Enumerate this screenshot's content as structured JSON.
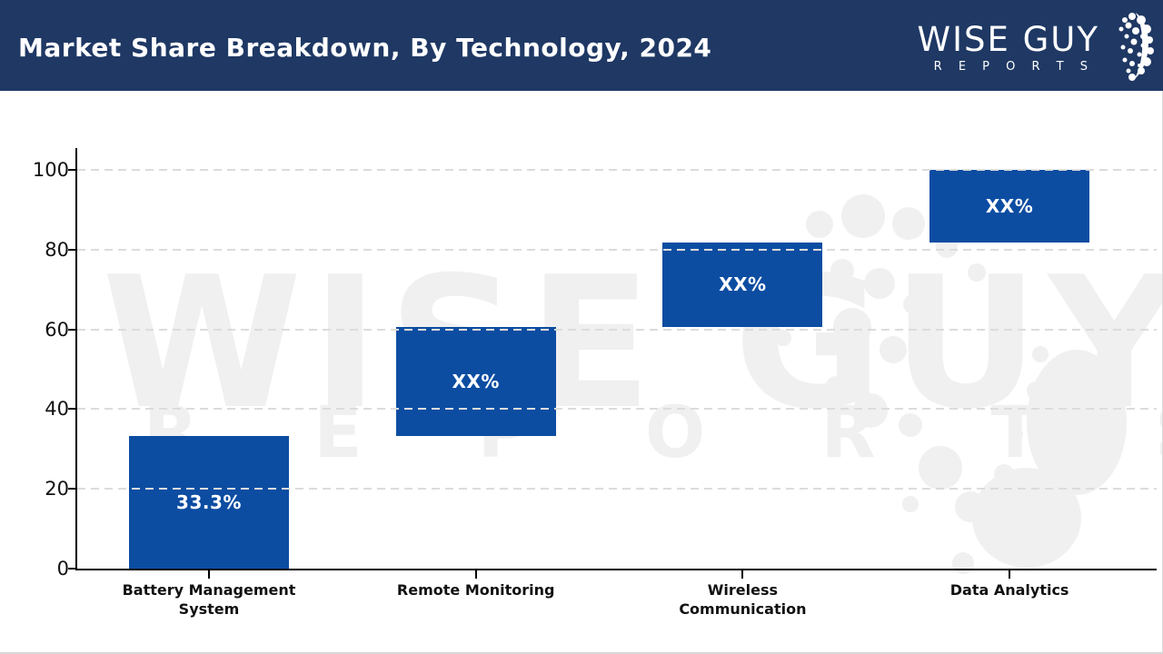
{
  "header": {
    "title": "Market Share Breakdown, By Technology, 2024",
    "bg_color": "#1f3864",
    "logo": {
      "name": "WISE GUY",
      "sub": "R E P O R T S"
    }
  },
  "watermark": {
    "name": "WISE GUY",
    "sub": "R E P O R T S",
    "color": "#f0f0f0"
  },
  "chart_data": {
    "type": "bar",
    "subtype": "waterfall",
    "title": "Market Share Breakdown, By Technology, 2024",
    "categories": [
      "Battery Management\nSystem",
      "Remote Monitoring",
      "Wireless\nCommunication",
      "Data Analytics"
    ],
    "series": [
      {
        "name": "Market share (%)",
        "segments": [
          {
            "category": "Battery Management System",
            "start": 0,
            "end": 33.3,
            "label": "33.3%"
          },
          {
            "category": "Remote Monitoring",
            "start": 33.3,
            "end": 60.6,
            "label": "XX%"
          },
          {
            "category": "Wireless Communication",
            "start": 60.6,
            "end": 81.8,
            "label": "XX%"
          },
          {
            "category": "Data Analytics",
            "start": 81.8,
            "end": 100,
            "label": "XX%"
          }
        ]
      }
    ],
    "xlabel": "",
    "ylabel": "",
    "yticks": [
      0,
      20,
      40,
      60,
      80,
      100
    ],
    "ylim": [
      0,
      105.5
    ],
    "bar_color": "#0c4da2",
    "grid": "horizontal-dashed",
    "grid_color": "#dcdcdc",
    "legend": "none"
  }
}
